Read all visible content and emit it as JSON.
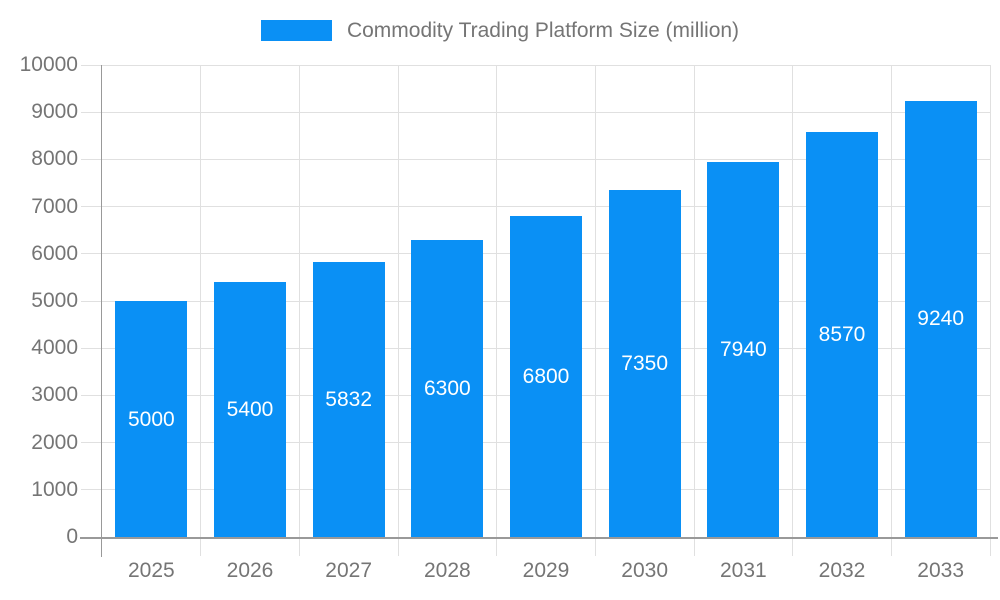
{
  "legend": {
    "label": "Commodity Trading Platform Size (million)"
  },
  "chart_data": {
    "type": "bar",
    "title": "Commodity Trading Platform Size (million)",
    "series_name": "Commodity Trading Platform Size (million)",
    "categories": [
      "2025",
      "2026",
      "2027",
      "2028",
      "2029",
      "2030",
      "2031",
      "2032",
      "2033"
    ],
    "values": [
      5000,
      5400,
      5832,
      6300,
      6800,
      7350,
      7940,
      8570,
      9240
    ],
    "bar_value_labels": [
      "5000",
      "5400",
      "5832",
      "6300",
      "6800",
      "7350",
      "7940",
      "8570",
      "9240"
    ],
    "xlabel": "",
    "ylabel": "",
    "ylim": [
      0,
      10000
    ],
    "yticks": [
      0,
      1000,
      2000,
      3000,
      4000,
      5000,
      6000,
      7000,
      8000,
      9000,
      10000
    ],
    "grid": "on",
    "legend_position": "top-center",
    "value_label_position": "inside-center",
    "colors": {
      "bar": "#0a90f5",
      "value_label_text": "#ffffff",
      "axis_text": "#757575",
      "axis_line": "#999999",
      "gridline": "#e0e0e0",
      "background": "#ffffff"
    }
  }
}
